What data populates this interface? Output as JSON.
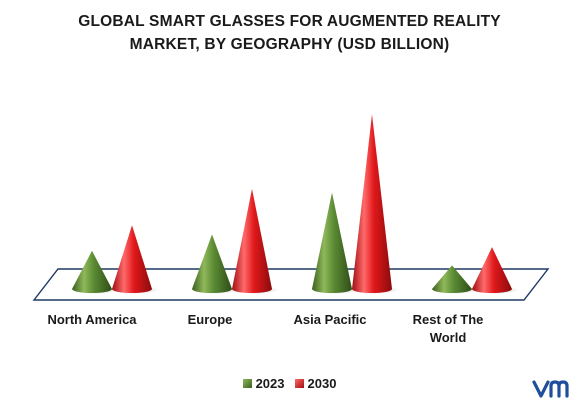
{
  "chart_data": {
    "type": "bar",
    "title_lines": [
      "GLOBAL SMART GLASSES FOR AUGMENTED REALITY",
      "MARKET, BY GEOGRAPHY (USD BILLION)"
    ],
    "categories": [
      "North America",
      "Europe",
      "Asia Pacific",
      "Rest of The World"
    ],
    "category_lines": [
      [
        "North America"
      ],
      [
        "Europe"
      ],
      [
        "Asia Pacific"
      ],
      [
        "Rest of The",
        "World"
      ]
    ],
    "series": [
      {
        "name": "2023",
        "values": [
          2.1,
          3.0,
          5.3,
          1.3
        ],
        "color": "#4e7a2c"
      },
      {
        "name": "2030",
        "values": [
          3.5,
          5.5,
          9.6,
          2.3
        ],
        "color": "#e0181b"
      }
    ],
    "ylim": [
      0,
      10
    ],
    "grid": false,
    "legend_position": "bottom"
  }
}
